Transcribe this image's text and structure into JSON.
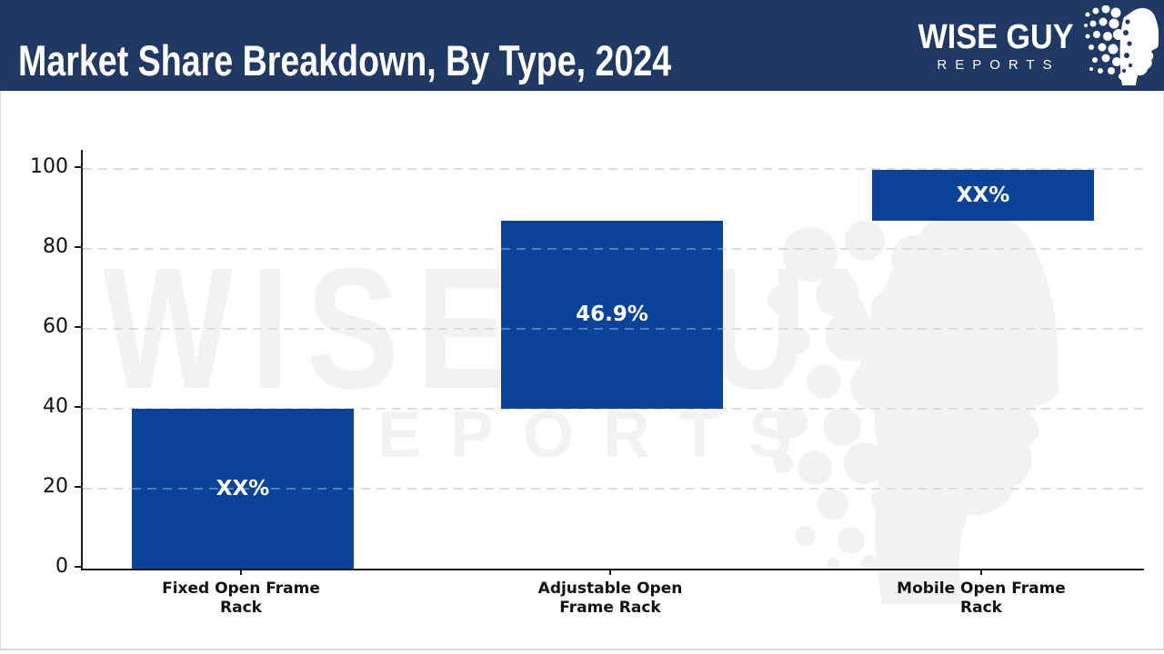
{
  "header": {
    "title": "Market Share Breakdown, By Type, 2024",
    "logo": {
      "brand": "WISE GUY",
      "sub": "REPORTS"
    }
  },
  "watermark": {
    "line1": "WISE GUY",
    "line2": "REPORTS"
  },
  "chart_data": {
    "type": "bar",
    "subtype": "floating-waterfall",
    "title": "Market Share Breakdown, By Type, 2024",
    "categories": [
      [
        "Fixed Open Frame",
        "Rack"
      ],
      [
        "Adjustable Open",
        "Frame Rack"
      ],
      [
        "Mobile Open Frame",
        "Rack"
      ]
    ],
    "bars": [
      {
        "category": "Fixed Open Frame Rack",
        "label": "XX%",
        "start": 0,
        "end": 40
      },
      {
        "category": "Adjustable Open Frame Rack",
        "label": "46.9%",
        "start": 40.1,
        "end": 87
      },
      {
        "category": "Mobile Open Frame Rack",
        "label": "XX%",
        "start": 87.1,
        "end": 99.7
      }
    ],
    "ylim": [
      0,
      100
    ],
    "yticks": [
      0,
      20,
      40,
      60,
      80,
      100
    ],
    "grid": "horizontal-dashed",
    "legend": "none",
    "bar_color": "#0b4399"
  },
  "colors": {
    "header_bg": "#203864",
    "bar": "#0b4399",
    "gridline": "#dcdcdc",
    "axis": "#1a1a1a",
    "text": "#111111",
    "watermark": "#f2f2f3"
  }
}
